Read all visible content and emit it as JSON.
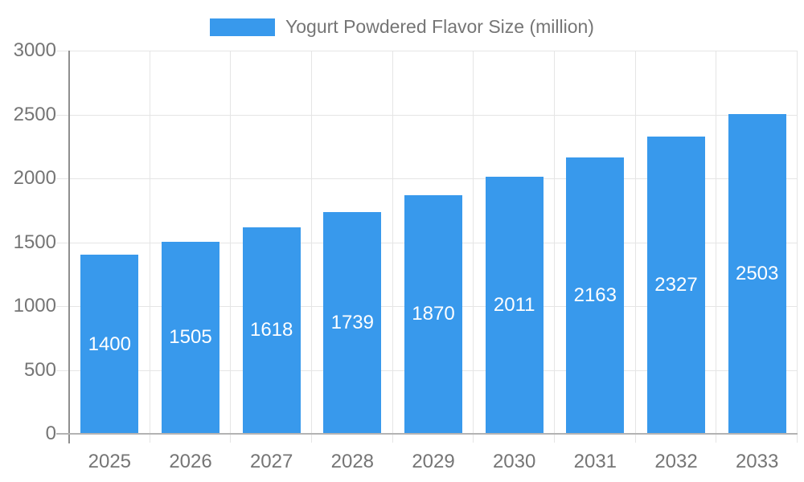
{
  "legend": {
    "label": "Yogurt Powdered Flavor Size (million)"
  },
  "colors": {
    "bar": "#3899EC",
    "grid": "#E5E5E5",
    "yaxis_line": "#8F8F8F",
    "xaxis_line": "#B3B3B3",
    "text": "#757575",
    "value_label": "#FFFFFF",
    "background": "#FFFFFF"
  },
  "chart_data": {
    "type": "bar",
    "title": "Yogurt Powdered Flavor Size (million)",
    "categories": [
      "2025",
      "2026",
      "2027",
      "2028",
      "2029",
      "2030",
      "2031",
      "2032",
      "2033"
    ],
    "values": [
      1400,
      1505,
      1618,
      1739,
      1870,
      2011,
      2163,
      2327,
      2503
    ],
    "series": [
      {
        "name": "Yogurt Powdered Flavor Size (million)",
        "values": [
          1400,
          1505,
          1618,
          1739,
          1870,
          2011,
          2163,
          2327,
          2503
        ]
      }
    ],
    "xlabel": "",
    "ylabel": "",
    "ylim": [
      0,
      3000
    ],
    "yticks": [
      0,
      500,
      1000,
      1500,
      2000,
      2500,
      3000
    ],
    "grid": true,
    "legend_position": "top-center",
    "value_labels": "inside-center-white"
  }
}
